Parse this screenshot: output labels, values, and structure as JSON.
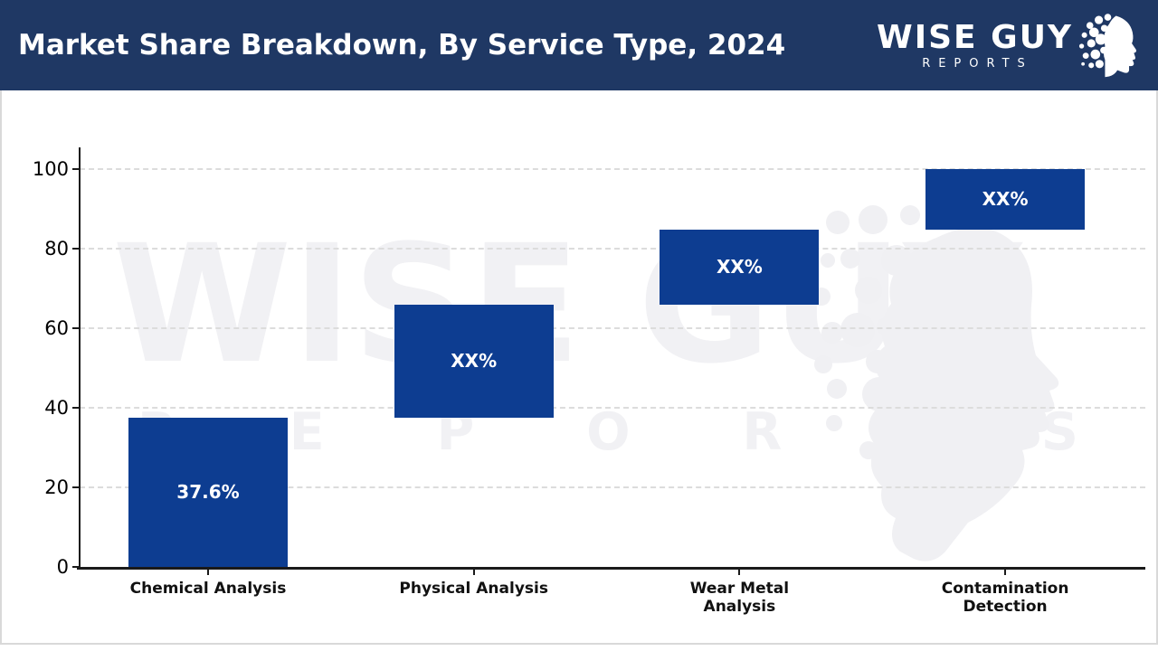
{
  "header": {
    "title": "Market Share Breakdown, By Service Type, 2024",
    "bg_color": "#1f3864",
    "logo": {
      "line1": "WISE GUY",
      "line2": "REPORTS"
    }
  },
  "watermark": {
    "line1": "WISE GUY",
    "line2": "R E P O R T S"
  },
  "chart_data": {
    "type": "bar",
    "subtype": "floating-stacked-waterfall",
    "title": "Market Share Breakdown, By Service Type, 2024",
    "categories": [
      "Chemical Analysis",
      "Physical Analysis",
      "Wear Metal\nAnalysis",
      "Contamination\nDetection"
    ],
    "segments": [
      {
        "category": "Chemical Analysis",
        "start": 0,
        "end": 37.6,
        "value": 37.6,
        "label": "37.6%"
      },
      {
        "category": "Physical Analysis",
        "start": 37.6,
        "end": 66.0,
        "value": 28.4,
        "label": "XX%"
      },
      {
        "category": "Wear Metal Analysis",
        "start": 66.0,
        "end": 84.8,
        "value": 18.8,
        "label": "XX%"
      },
      {
        "category": "Contamination Detection",
        "start": 84.8,
        "end": 100.0,
        "value": 15.2,
        "label": "XX%"
      }
    ],
    "xlabel": "",
    "ylabel": "",
    "ylim": [
      0,
      100
    ],
    "yticks": [
      0,
      20,
      40,
      60,
      80,
      100
    ],
    "bar_color": "#0d3d91",
    "grid": "horizontal-dashed",
    "legend": "none"
  }
}
